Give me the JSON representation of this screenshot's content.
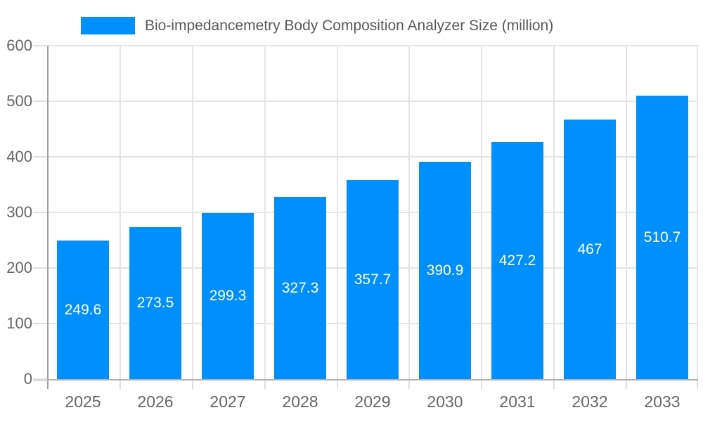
{
  "chart_data": {
    "type": "bar",
    "title": "Bio-impedancemetry Body Composition Analyzer Size (million)",
    "categories": [
      "2025",
      "2026",
      "2027",
      "2028",
      "2029",
      "2030",
      "2031",
      "2032",
      "2033"
    ],
    "series": [
      {
        "name": "Bio-impedancemetry Body Composition Analyzer Size (million)",
        "values": [
          249.6,
          273.5,
          299.3,
          327.3,
          357.7,
          390.9,
          427.2,
          467,
          510.7
        ]
      }
    ],
    "value_labels": [
      "249.6",
      "273.5",
      "299.3",
      "327.3",
      "357.7",
      "390.9",
      "427.2",
      "467",
      "510.7"
    ],
    "xlabel": "",
    "ylabel": "",
    "ylim": [
      0,
      600
    ],
    "yticks": [
      0,
      100,
      200,
      300,
      400,
      500,
      600
    ],
    "grid": "both",
    "legend_position": "top-left",
    "colors": {
      "bar": "#008FFB",
      "value_label": "#ffffff",
      "axis_label": "#666666",
      "legend_label": "#58595b",
      "gridline": "#e4e4e4",
      "y_axis_line": "#9e9e9e",
      "x_axis_line": "#b1b1b1",
      "tick": "#dedede",
      "background": "#ffffff"
    }
  }
}
